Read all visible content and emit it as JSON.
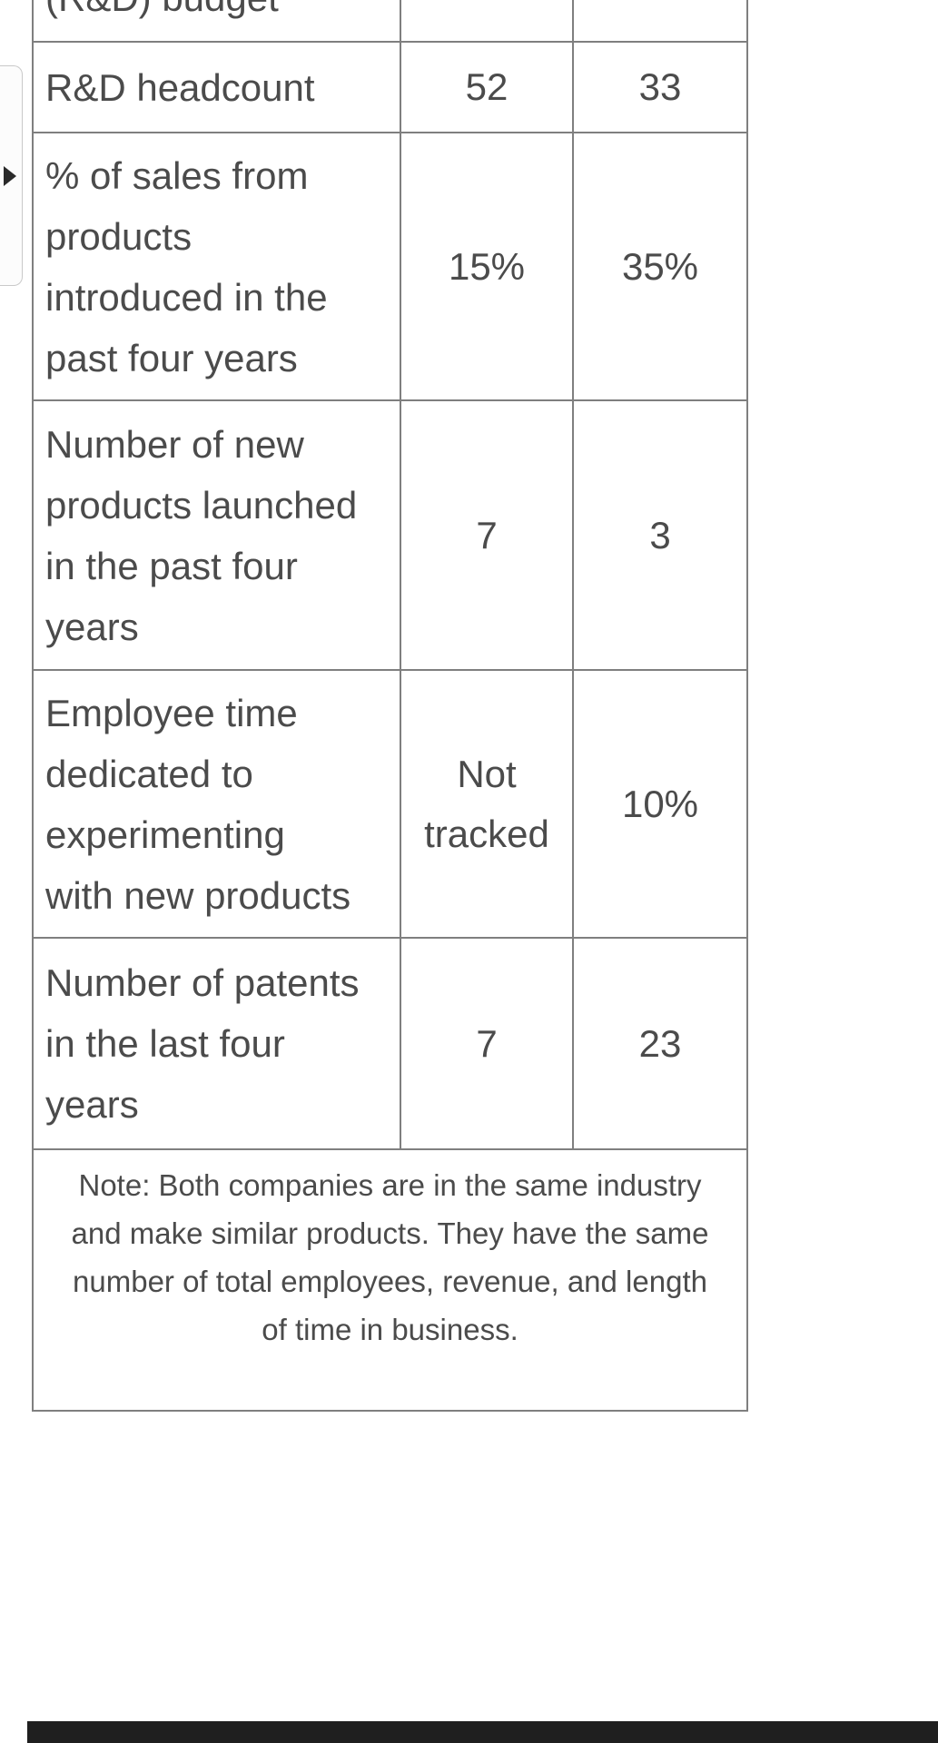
{
  "table": {
    "partial_top_row": {
      "label": "(R&D) budget",
      "value_a": "",
      "value_b": ""
    },
    "rows": [
      {
        "label": "R&D headcount",
        "value_a": "52",
        "value_b": "33"
      },
      {
        "label": "% of sales from\nproducts\nintroduced in the\npast four years",
        "value_a": "15%",
        "value_b": "35%"
      },
      {
        "label": "Number of new\nproducts launched\nin the past four\nyears",
        "value_a": "7",
        "value_b": "3"
      },
      {
        "label": "Employee time\ndedicated to\nexperimenting\nwith new products",
        "value_a": "Not\ntracked",
        "value_b": "10%"
      },
      {
        "label": "Number of patents\nin the last four\nyears",
        "value_a": "7",
        "value_b": "23"
      }
    ],
    "note": "Note: Both companies are in the same industry\nand make similar products. They have the same\nnumber of total employees, revenue, and length\nof time in business."
  },
  "drawer": {
    "icon": "chevron-right-icon"
  },
  "colors": {
    "text": "#4b4b4b",
    "border": "#7f7f7f",
    "bottom_bar": "#1f1f1f"
  }
}
